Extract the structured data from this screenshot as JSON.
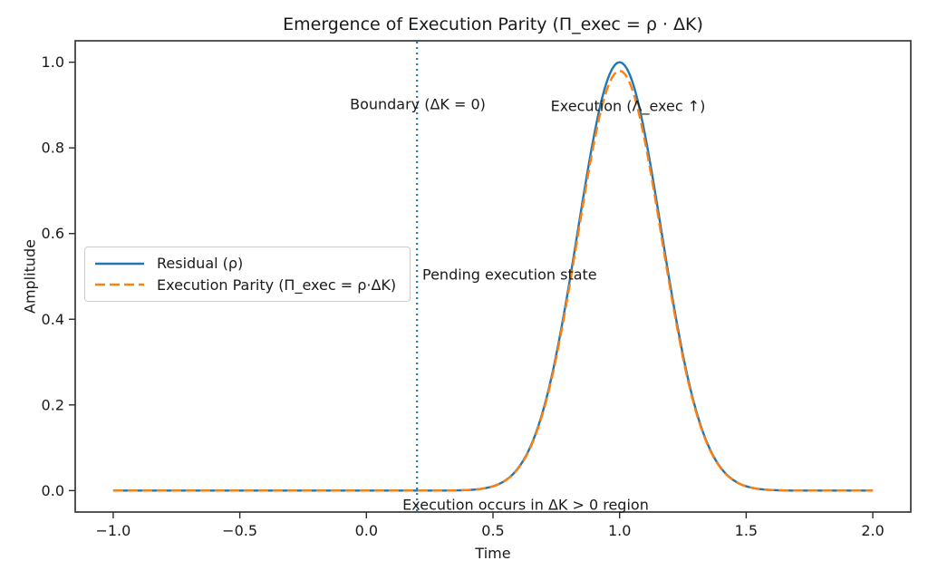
{
  "chart_data": {
    "type": "line",
    "title": "Emergence of Execution Parity (Π_exec = ρ · ΔK)",
    "xlabel": "Time",
    "ylabel": "Amplitude",
    "xlim": [
      -1.15,
      2.15
    ],
    "ylim": [
      -0.05,
      1.05
    ],
    "grid": false,
    "frame_color": "#2b2b2b",
    "x_ticks": [
      -1.0,
      -0.5,
      0.0,
      0.5,
      1.0,
      1.5,
      2.0
    ],
    "x_tick_labels": [
      "−1.0",
      "−0.5",
      "0.0",
      "0.5",
      "1.0",
      "1.5",
      "2.0"
    ],
    "y_ticks": [
      0.0,
      0.2,
      0.4,
      0.6,
      0.8,
      1.0
    ],
    "y_tick_labels": [
      "0.0",
      "0.2",
      "0.4",
      "0.6",
      "0.8",
      "1.0"
    ],
    "x": [
      -1.0,
      -0.9,
      -0.8,
      -0.7,
      -0.6,
      -0.5,
      -0.4,
      -0.3,
      -0.2,
      -0.1,
      0.0,
      0.1,
      0.2,
      0.3,
      0.4,
      0.5,
      0.6,
      0.7,
      0.8,
      0.9,
      1.0,
      1.1,
      1.2,
      1.3,
      1.4,
      1.5,
      1.6,
      1.7,
      1.8,
      1.9,
      2.0
    ],
    "series": [
      {
        "name": "Residual (ρ)",
        "color": "#1f77b4",
        "style": "solid",
        "gaussian": {
          "center": 1.0,
          "sigma": 0.165,
          "peak": 1.0
        },
        "x_range": [
          -1.0,
          2.0
        ],
        "values": [
          0,
          0,
          0,
          0,
          0,
          0,
          0,
          0,
          0,
          0,
          0,
          0,
          0,
          0.0001,
          0.0013,
          0.0101,
          0.053,
          0.1915,
          0.4797,
          0.8322,
          1.0,
          0.8322,
          0.4797,
          0.1915,
          0.053,
          0.0101,
          0.0013,
          0.0001,
          0,
          0,
          0
        ]
      },
      {
        "name": "Execution Parity (Π_exec = ρ·ΔK)",
        "color": "#ff7f0e",
        "style": "dashed",
        "gaussian": {
          "center": 1.0,
          "sigma": 0.165,
          "peak": 0.98
        },
        "x_range": [
          -1.0,
          2.0
        ],
        "values": [
          0,
          0,
          0,
          0,
          0,
          0,
          0,
          0,
          0,
          0,
          0,
          0,
          0,
          0.0001,
          0.0013,
          0.0099,
          0.0519,
          0.1877,
          0.4701,
          0.8156,
          0.98,
          0.8156,
          0.4701,
          0.1877,
          0.0519,
          0.0099,
          0.0013,
          0.0001,
          0,
          0,
          0
        ]
      }
    ],
    "vline": {
      "x": 0.2,
      "color": "#1f77b4",
      "style": "dotted"
    },
    "legend": {
      "position": "center left",
      "border_color": "#cccccc"
    },
    "annotations": [
      {
        "text": "Boundary (ΔK = 0)",
        "x": 0.2,
        "y": 0.9,
        "align": "center"
      },
      {
        "text": "Execution (Λ_exec ↑)",
        "x": 1.03,
        "y": 0.9,
        "align": "center"
      },
      {
        "text": "Pending execution state",
        "x": 0.22,
        "y": 0.5,
        "align": "left"
      },
      {
        "text": "Execution occurs in ΔK > 0 region",
        "x": 0.63,
        "y": -0.035,
        "align": "center"
      }
    ]
  }
}
